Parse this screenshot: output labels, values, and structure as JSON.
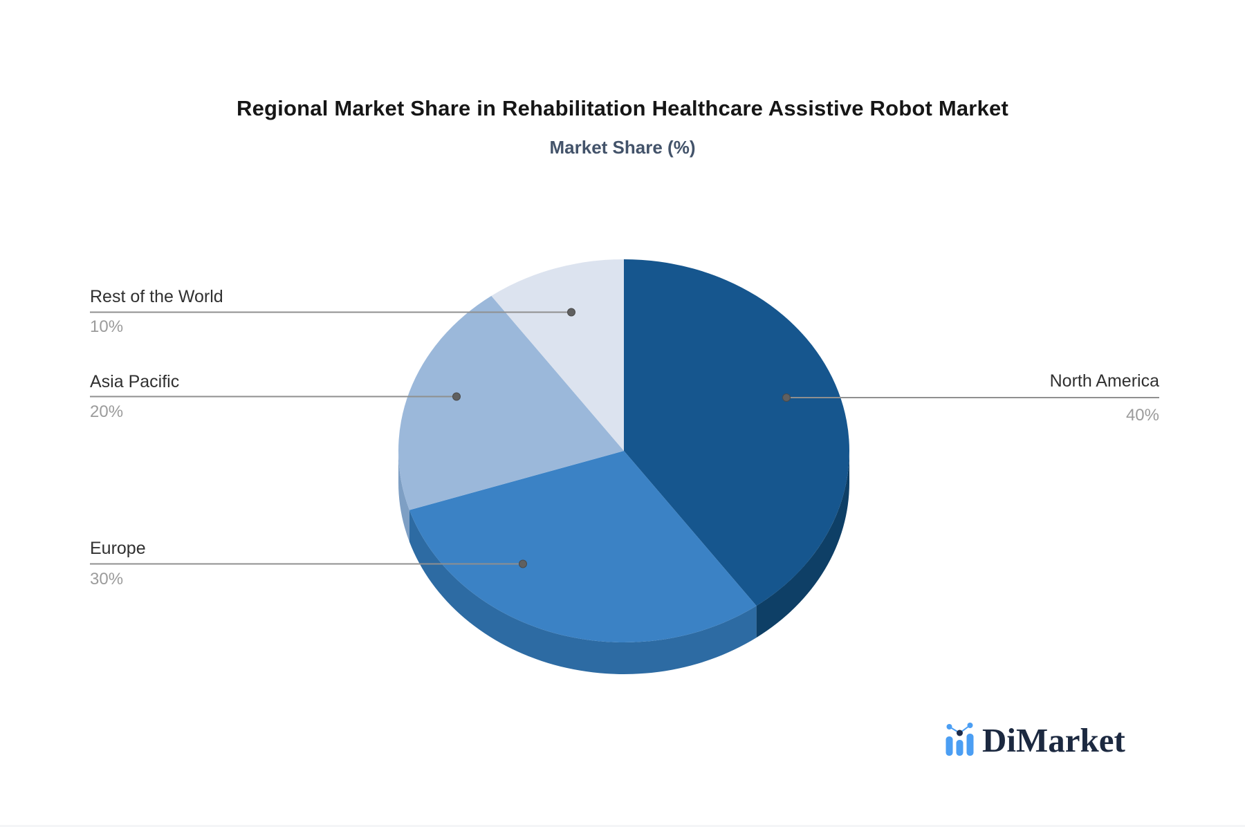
{
  "title": "Regional Market Share in Rehabilitation Healthcare Assistive Robot Market",
  "subtitle": "Market Share (%)",
  "brand": {
    "name": "DiMarket",
    "icon": "bar-line-chart-icon",
    "accent_color": "#4b9ef3",
    "navy_color": "#1d2b4a"
  },
  "chart_data": {
    "type": "pie",
    "title": "Regional Market Share in Rehabilitation Healthcare Assistive Robot Market",
    "subtitle": "Market Share (%)",
    "unit": "%",
    "effect": "3d",
    "start_angle_deg": 0,
    "direction": "clockwise",
    "legend": "none",
    "categories": [
      "North America",
      "Europe",
      "Asia Pacific",
      "Rest of the World"
    ],
    "values": [
      40,
      30,
      20,
      10
    ],
    "slices": [
      {
        "label": "North America",
        "value": 40,
        "pct_label": "40%",
        "color": "#16568e",
        "side_color": "#0e3f66",
        "label_side": "right"
      },
      {
        "label": "Europe",
        "value": 30,
        "pct_label": "30%",
        "color": "#3b82c5",
        "side_color": "#2d6ba3",
        "label_side": "left"
      },
      {
        "label": "Asia Pacific",
        "value": 20,
        "pct_label": "20%",
        "color": "#9bb8da",
        "side_color": "#7e9fc4",
        "label_side": "left"
      },
      {
        "label": "Rest of the World",
        "value": 10,
        "pct_label": "10%",
        "color": "#dce3ef",
        "side_color": "#c2cddd",
        "label_side": "left"
      }
    ],
    "leader_line_color": "#8f8f8f",
    "leader_dot_color": "#606060",
    "label_color": "#303030",
    "pct_color": "#9b9b9b"
  }
}
